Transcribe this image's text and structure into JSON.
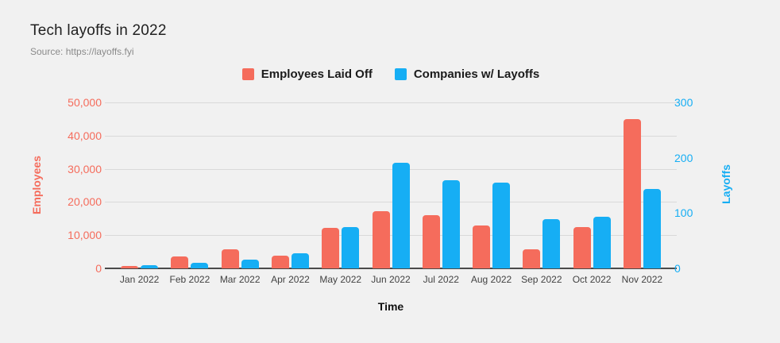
{
  "header": {
    "title": "Tech layoffs in 2022",
    "subtitle": "Source: https://layoffs.fyi"
  },
  "colors": {
    "background": "#f1f1f1",
    "gridline": "#d9d9d9",
    "x_axis_line": "#4a4a4a",
    "employees_accent": "#f56c5c",
    "companies_accent": "#16aef4",
    "x_tick_text": "#424242"
  },
  "chart_data": {
    "type": "bar",
    "title": "Tech layoffs in 2022",
    "subtitle": "Source: https://layoffs.fyi",
    "categories": [
      "Jan 2022",
      "Feb 2022",
      "Mar 2022",
      "Apr 2022",
      "May 2022",
      "Jun 2022",
      "Jul 2022",
      "Aug 2022",
      "Sep 2022",
      "Oct 2022",
      "Nov 2022"
    ],
    "series": [
      {
        "name": "Employees Laid Off",
        "axis": "left",
        "color": "#f56c5c",
        "values": [
          600,
          3600,
          5700,
          3900,
          12200,
          17300,
          16000,
          12900,
          5800,
          12400,
          45000
        ]
      },
      {
        "name": "Companies w/ Layoffs",
        "axis": "right",
        "color": "#16aef4",
        "values": [
          6,
          10,
          16,
          27,
          74,
          191,
          159,
          155,
          89,
          94,
          143
        ]
      }
    ],
    "left_axis": {
      "label": "Employees",
      "color": "#f56c5c",
      "min": 0,
      "max": 50000,
      "ticks": [
        {
          "value": 0,
          "label": "0"
        },
        {
          "value": 10000,
          "label": "10,000"
        },
        {
          "value": 20000,
          "label": "20,000"
        },
        {
          "value": 30000,
          "label": "30,000"
        },
        {
          "value": 40000,
          "label": "40,000"
        },
        {
          "value": 50000,
          "label": "50,000"
        }
      ]
    },
    "right_axis": {
      "label": "Layoffs",
      "color": "#16aef4",
      "min": 0,
      "max": 300,
      "ticks": [
        {
          "value": 0,
          "label": "0"
        },
        {
          "value": 100,
          "label": "100"
        },
        {
          "value": 200,
          "label": "200"
        },
        {
          "value": 300,
          "label": "300"
        }
      ]
    },
    "x_axis": {
      "label": "Time"
    },
    "grid": true,
    "legend_position": "top"
  }
}
